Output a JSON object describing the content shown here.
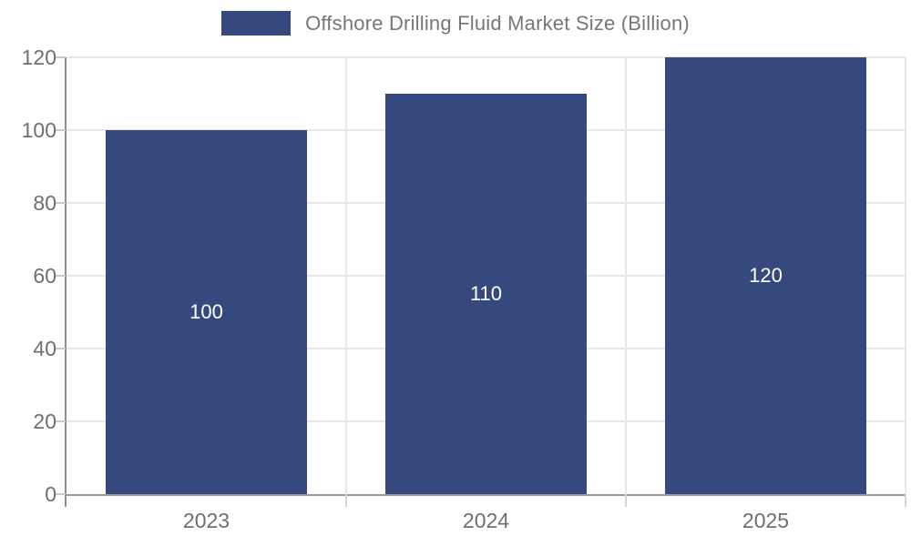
{
  "legend": {
    "label": "Offshore Drilling Fluid Market Size (Billion)"
  },
  "chart_data": {
    "type": "bar",
    "title": "",
    "categories": [
      "2023",
      "2024",
      "2025"
    ],
    "values": [
      100,
      110,
      120
    ],
    "series_name": "Offshore Drilling Fluid Market Size (Billion)",
    "value_labels": [
      "100",
      "110",
      "120"
    ],
    "xlabel": "",
    "ylabel": "",
    "ylim": [
      0,
      120
    ],
    "yticks": [
      0,
      20,
      40,
      60,
      80,
      100,
      120
    ],
    "grid": true,
    "legend_position": "top-center",
    "bar_color": "#36497E",
    "value_label_color": "#FFFFFF",
    "tick_label_color": "#6F6F6F",
    "gridline_color": "#E7E7E7",
    "axis_color": "#9A9A9A"
  }
}
